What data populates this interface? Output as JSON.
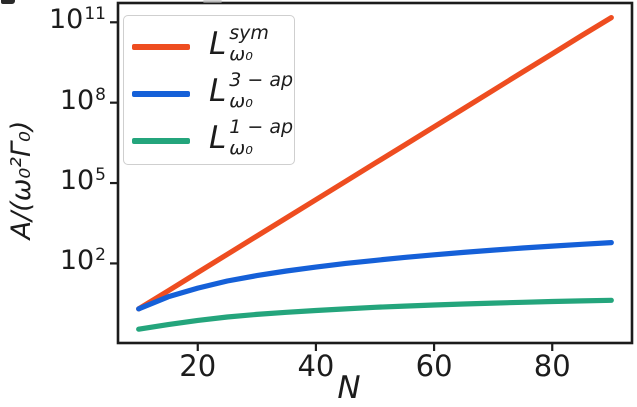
{
  "axes": {
    "x_label": "N",
    "y_label": "A/(ω₀²Γ₀)",
    "x_ticks": [
      20,
      40,
      60,
      80
    ],
    "y_tick_base": "10",
    "y_tick_exponents": [
      2,
      5,
      8,
      11
    ]
  },
  "legend": {
    "items": [
      {
        "base": "L",
        "sup": "sym",
        "sub": "ω₀",
        "color": "#ee4d20"
      },
      {
        "base": "L",
        "sup": "3 − ap",
        "sub": "ω₀",
        "color": "#1560d8"
      },
      {
        "base": "L",
        "sup": "1 − ap",
        "sub": "ω₀",
        "color": "#24a57c"
      }
    ]
  },
  "chart_data": {
    "type": "line",
    "title": "",
    "xlabel": "N",
    "ylabel": "A/(ω₀²Γ₀)",
    "yscale": "log",
    "grid": false,
    "legend_position": "upper left",
    "xlim": [
      6.5,
      93.5
    ],
    "ylim": [
      0.11,
      520000000000.0
    ],
    "x": [
      10,
      15,
      20,
      25,
      30,
      35,
      40,
      45,
      50,
      55,
      60,
      65,
      70,
      75,
      80,
      85,
      90
    ],
    "series": [
      {
        "name": "sym",
        "label": "L^sym_ω0",
        "color": "#ee4d20",
        "values": [
          2,
          9.5,
          46,
          220,
          1050,
          5000,
          24000,
          115000,
          550000,
          2600000.0,
          12600000.0,
          60000000.0,
          290000000.0,
          1400000000.0,
          6600000000.0,
          32000000000.0,
          150000000000.0
        ]
      },
      {
        "name": "3-ap",
        "label": "L^3-ap_ω0",
        "color": "#1560d8",
        "values": [
          2,
          5.7,
          12,
          22,
          35,
          52,
          73,
          100,
          130,
          168,
          210,
          259,
          313,
          375,
          444,
          519,
          600
        ]
      },
      {
        "name": "1-ap",
        "label": "L^1-ap_ω0",
        "color": "#24a57c",
        "values": [
          0.35,
          0.52,
          0.75,
          1.0,
          1.25,
          1.5,
          1.75,
          2.0,
          2.3,
          2.55,
          2.8,
          3.05,
          3.3,
          3.55,
          3.8,
          4.0,
          4.2
        ]
      }
    ]
  }
}
